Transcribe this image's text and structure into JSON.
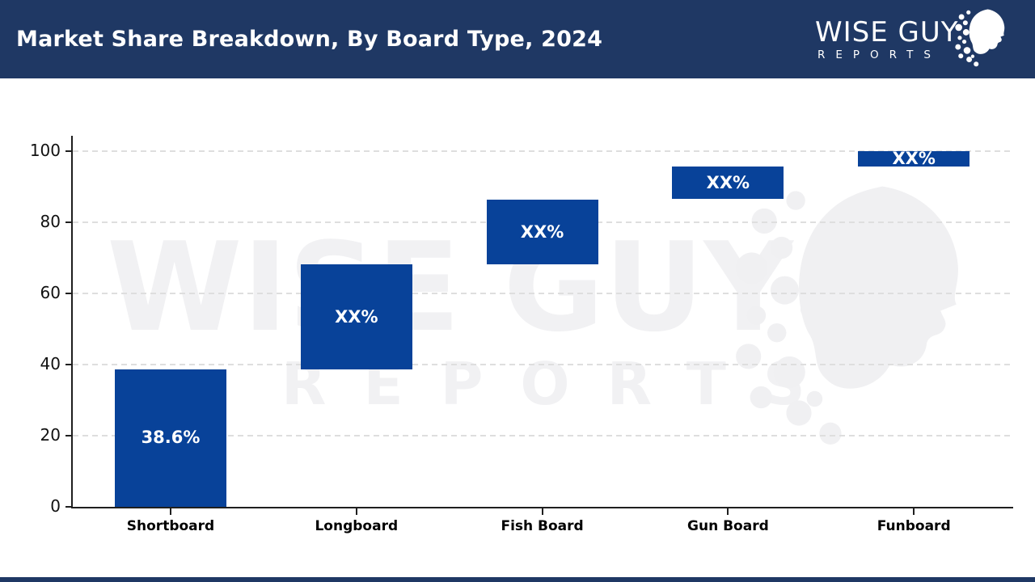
{
  "header": {
    "title": "Market Share Breakdown, By Board Type, 2024",
    "bg_color": "#1f3864",
    "logo": {
      "line1": "WISE GUY",
      "line2": "REPORTS"
    }
  },
  "watermark": {
    "line1": "WISE GUY",
    "line2": "REPORTS"
  },
  "chart_data": {
    "type": "bar",
    "subtype": "waterfall",
    "title": "Market Share Breakdown, By Board Type, 2024",
    "categories": [
      "Shortboard",
      "Longboard",
      "Fish Board",
      "Gun Board",
      "Funboard"
    ],
    "segments": [
      {
        "category": "Shortboard",
        "start": 0,
        "end": 38.6,
        "label": "38.6%"
      },
      {
        "category": "Longboard",
        "start": 38.6,
        "end": 68,
        "label": "XX%"
      },
      {
        "category": "Fish Board",
        "start": 68,
        "end": 86.2,
        "label": "XX%"
      },
      {
        "category": "Gun Board",
        "start": 86.5,
        "end": 95.5,
        "label": "XX%"
      },
      {
        "category": "Funboard",
        "start": 95.5,
        "end": 100,
        "label": "XX%"
      }
    ],
    "y_ticks": [
      0,
      20,
      40,
      60,
      80,
      100
    ],
    "ylim": [
      0,
      104
    ],
    "xlabel": "",
    "ylabel": "",
    "bar_color": "#084299",
    "bar_label_color": "#ffffff",
    "grid": "horizontal-dashed",
    "legend": "none"
  }
}
